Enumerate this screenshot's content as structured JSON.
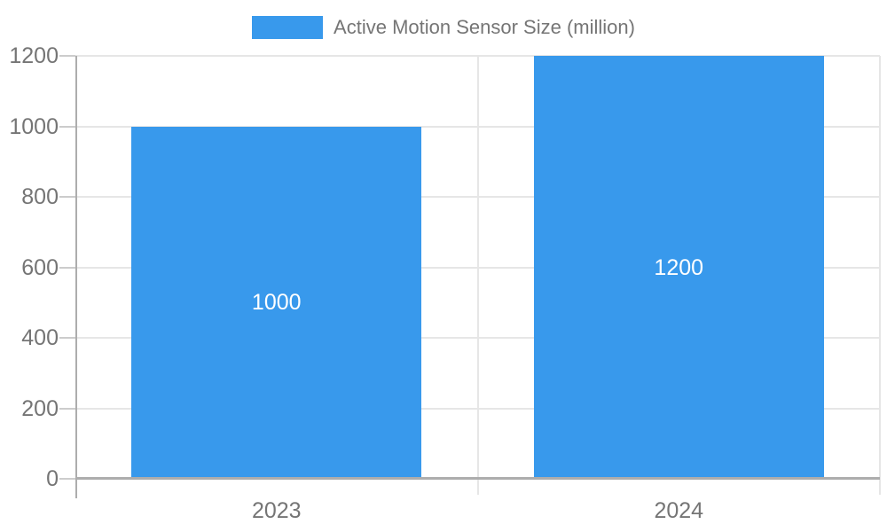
{
  "chart_data": {
    "type": "bar",
    "title": "",
    "series_name": "Active Motion Sensor Size (million)",
    "categories": [
      "2023",
      "2024"
    ],
    "values": [
      1000,
      1200
    ],
    "xlabel": "",
    "ylabel": "",
    "ylim": [
      0,
      1200
    ],
    "yticks": [
      0,
      200,
      400,
      600,
      800,
      1000,
      1200
    ],
    "grid": true,
    "legend_position": "top-center",
    "value_labels_inside_bars": true,
    "colors": {
      "bar": "#3899EC",
      "bar_label_text": "#FFFFFF",
      "axis_text": "#757575",
      "gridline": "#E6E6E6",
      "axis_line": "#ADADAD",
      "tick": "#CCCCCC",
      "background": "#FFFFFF"
    }
  }
}
